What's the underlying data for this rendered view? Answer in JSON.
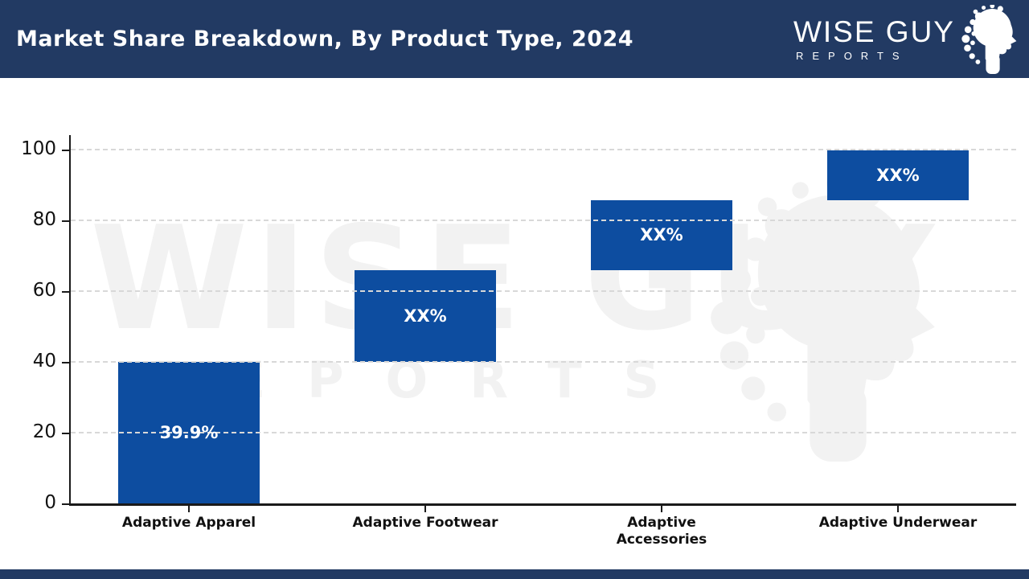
{
  "header": {
    "title": "Market Share Breakdown, By Product Type, 2024",
    "logo": {
      "wordmark": "WISE GUY",
      "subtext": "REPORTS"
    }
  },
  "watermark": {
    "wordmark": "WISE GUY",
    "subtext": "REPORTS"
  },
  "colors": {
    "header_bg": "#223a63",
    "footer_bg": "#223a63",
    "bar": "#0d4da0",
    "bar_label_text": "#ffffff",
    "grid_line": "#d8d8d8",
    "axis": "#1a1a1a",
    "tick_label_text": "#111111",
    "watermark": "#f2f2f2",
    "background": "#ffffff"
  },
  "chart_data": {
    "type": "bar",
    "subtype": "floating-waterfall",
    "title": "Market Share Breakdown, By Product Type, 2024",
    "categories": [
      "Adaptive Apparel",
      "Adaptive Footwear",
      "Adaptive\nAccessories",
      "Adaptive Underwear"
    ],
    "segments": [
      {
        "category": "Adaptive Apparel",
        "start": 0,
        "end": 39.9,
        "value": 39.9,
        "label": "39.9%"
      },
      {
        "category": "Adaptive Footwear",
        "start": 39.9,
        "end": 65.9,
        "value": 26.0,
        "label": "XX%"
      },
      {
        "category": "Adaptive Accessories",
        "start": 65.9,
        "end": 85.7,
        "value": 19.8,
        "label": "XX%"
      },
      {
        "category": "Adaptive Underwear",
        "start": 85.7,
        "end": 99.8,
        "value": 14.1,
        "label": "XX%"
      }
    ],
    "yticks": [
      0,
      20,
      40,
      60,
      80,
      100
    ],
    "ylim": [
      0,
      104
    ],
    "xlabel": "",
    "ylabel": "",
    "grid": "horizontal-dashed",
    "legend": false
  }
}
